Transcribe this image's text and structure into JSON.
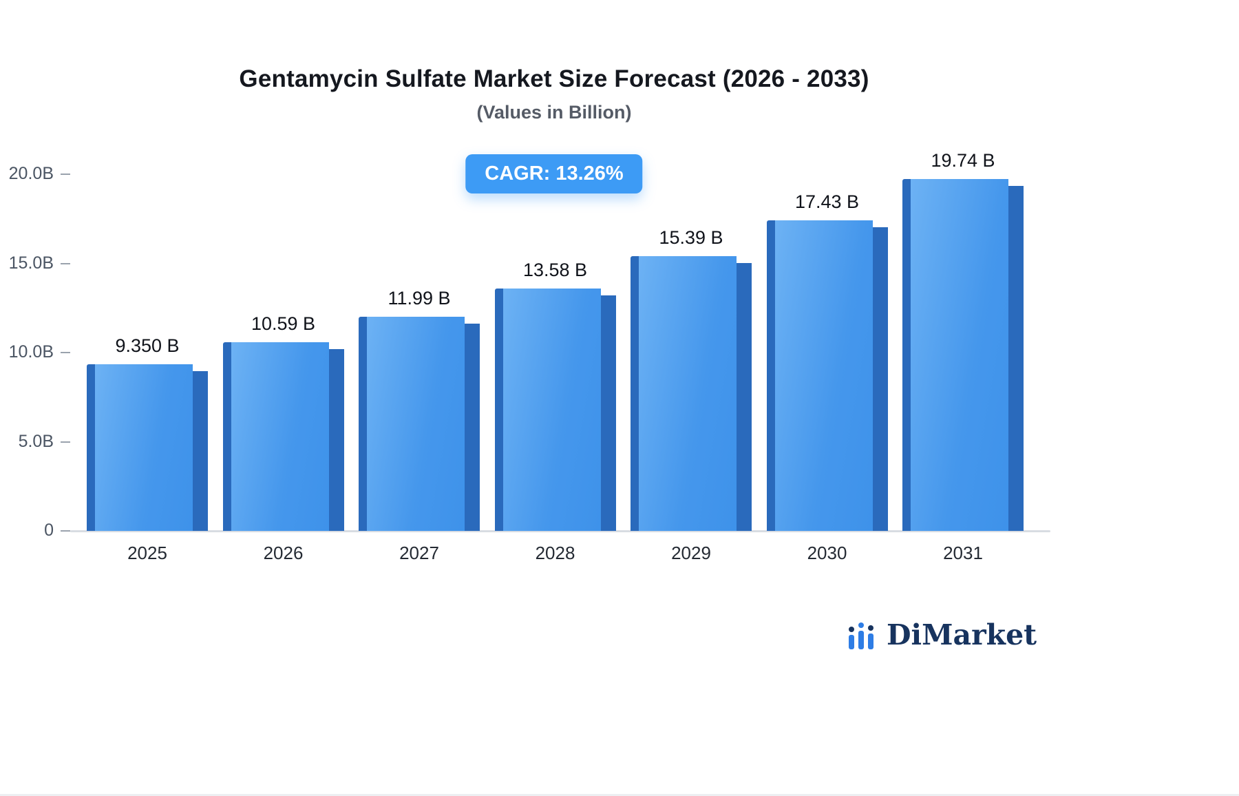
{
  "header": {
    "title": "Gentamycin Sulfate Market Size Forecast (2026 - 2033)",
    "subtitle": "(Values in Billion)",
    "cagr_badge": "CAGR: 13.26%"
  },
  "chart_data": {
    "type": "bar",
    "title": "Gentamycin Sulfate Market Size Forecast (2026 - 2033)",
    "subtitle": "(Values in Billion)",
    "annotation": "CAGR: 13.26%",
    "categories": [
      "2025",
      "2026",
      "2027",
      "2028",
      "2029",
      "2030",
      "2031"
    ],
    "values": [
      9.35,
      10.59,
      11.99,
      13.58,
      15.39,
      17.43,
      19.74
    ],
    "bar_labels": [
      "9.350 B",
      "10.59 B",
      "11.99 B",
      "13.58 B",
      "15.39 B",
      "17.43 B",
      "19.74 B"
    ],
    "ylim": [
      0,
      20
    ],
    "yticks": [
      {
        "value": 20,
        "label": "20.0B"
      },
      {
        "value": 15,
        "label": "15.0B"
      },
      {
        "value": 10,
        "label": "10.0B"
      },
      {
        "value": 5,
        "label": "5.0B"
      },
      {
        "value": 0,
        "label": "0"
      }
    ],
    "grid": false,
    "legend": false,
    "colors": {
      "bar_face_light": "#6DB2F4",
      "bar_face_dark": "#3E92EA",
      "bar_side": "#2A6ABC",
      "badge_bg": "#3D9BF5",
      "badge_text": "#FFFFFF",
      "axis_text": "#4B5563",
      "label_text": "#10131A"
    }
  },
  "logo": {
    "text": "DiMarket",
    "icon": "bar-chart-icon",
    "text_color": "#17335E",
    "icon_color": "#2E7DE5"
  }
}
